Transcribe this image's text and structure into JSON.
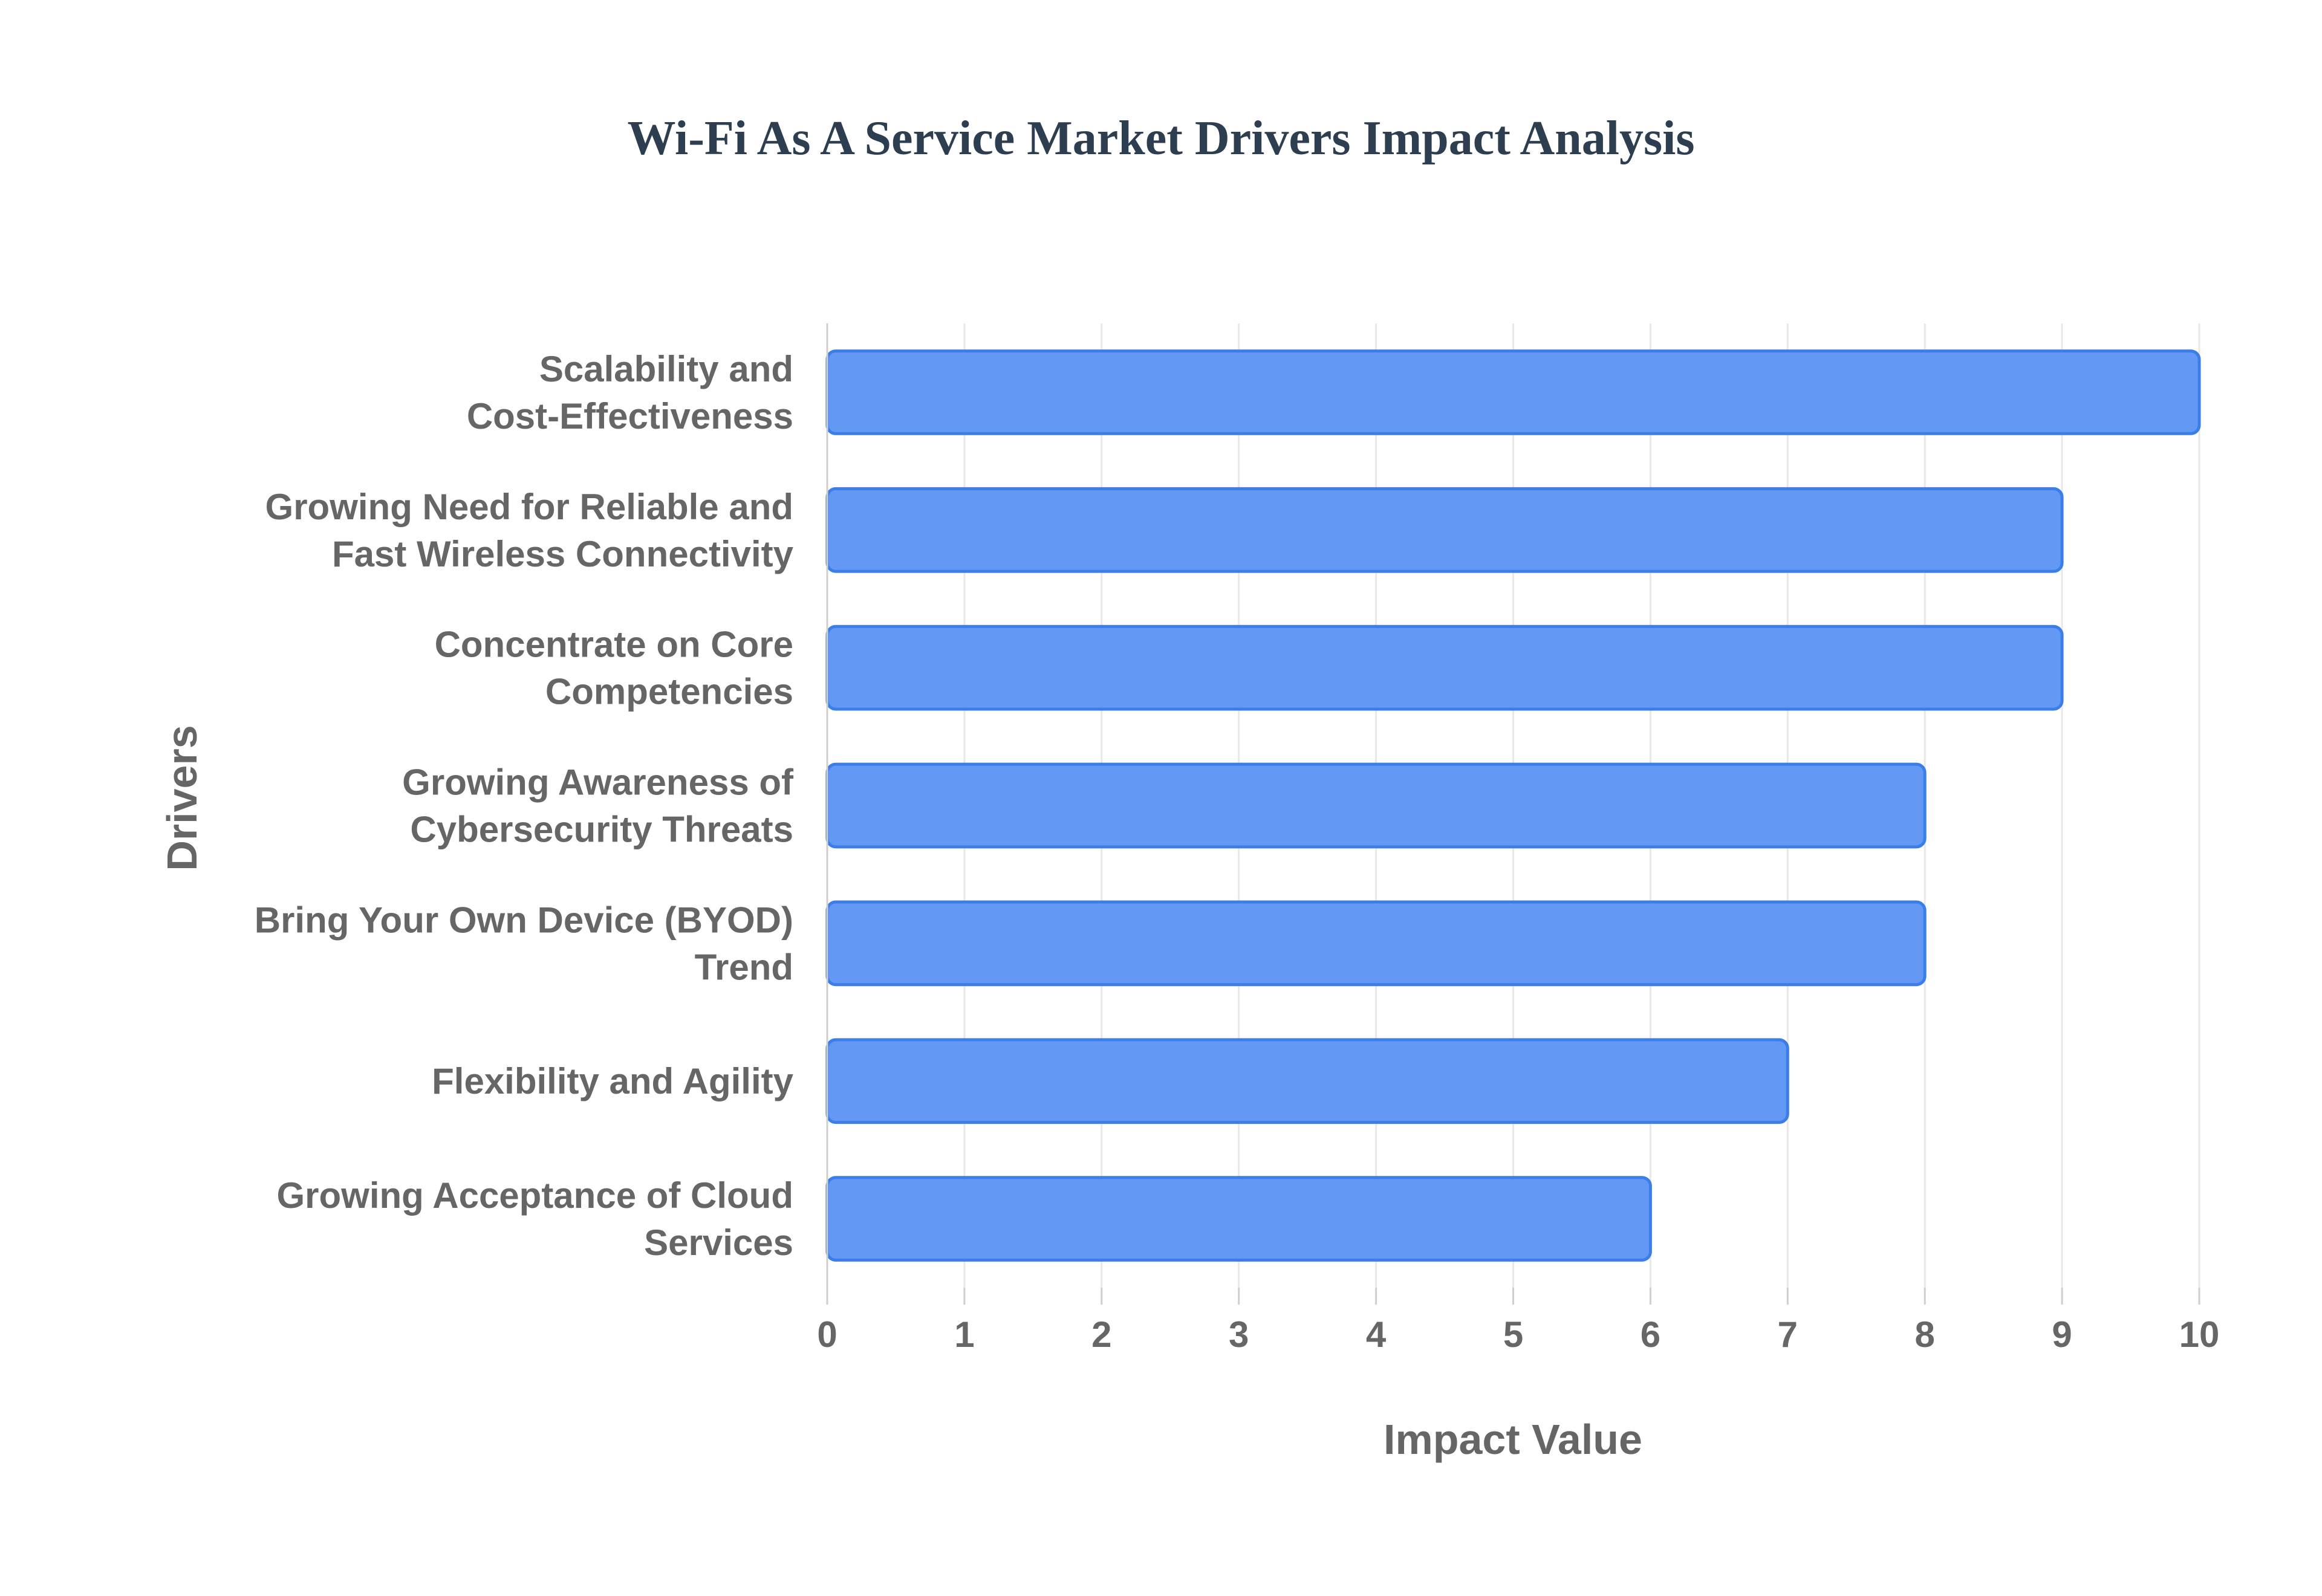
{
  "chart_data": {
    "type": "bar",
    "orientation": "horizontal",
    "title": "Wi-Fi As A Service Market Drivers Impact Analysis",
    "xlabel": "Impact Value",
    "ylabel": "Drivers",
    "xlim": [
      0,
      10
    ],
    "x_ticks": [
      "0",
      "1",
      "2",
      "3",
      "4",
      "5",
      "6",
      "7",
      "8",
      "9",
      "10"
    ],
    "grid": true,
    "bar_color": "#6399f5",
    "bar_border_color": "#3b7ee8",
    "categories": [
      [
        "Scalability and",
        "Cost-Effectiveness"
      ],
      [
        "Growing Need for Reliable and",
        "Fast Wireless Connectivity"
      ],
      [
        "Concentrate on Core",
        "Competencies"
      ],
      [
        "Growing Awareness of",
        "Cybersecurity Threats"
      ],
      [
        "Bring Your Own Device (BYOD)",
        "Trend"
      ],
      [
        "Flexibility and Agility"
      ],
      [
        "Growing Acceptance of Cloud",
        "Services"
      ]
    ],
    "values": [
      10,
      9,
      9,
      8,
      8,
      7,
      6
    ]
  }
}
